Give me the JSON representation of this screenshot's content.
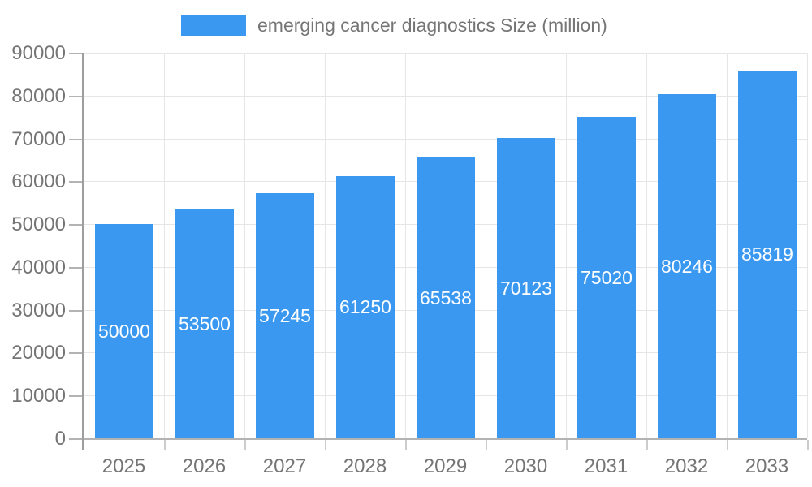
{
  "legend": {
    "label": "emerging cancer diagnostics Size (million)",
    "swatch_color": "#3a98f0"
  },
  "colors": {
    "bar": "#3a98f0",
    "value_label": "#ffffff",
    "axis_text": "#757575",
    "grid_line": "#e6e6e6",
    "y_axis_line": "#9e9e9e",
    "baseline": "#b3b3b3",
    "x_tick": "#cccccc",
    "background": "#ffffff"
  },
  "chart_data": {
    "type": "bar",
    "title": "",
    "xlabel": "",
    "ylabel": "",
    "categories": [
      "2025",
      "2026",
      "2027",
      "2028",
      "2029",
      "2030",
      "2031",
      "2032",
      "2033"
    ],
    "series": [
      {
        "name": "emerging cancer diagnostics Size (million)",
        "color": "#3a98f0",
        "values": [
          50000,
          53500,
          57245,
          61250,
          65538,
          70123,
          75020,
          80246,
          85819
        ]
      }
    ],
    "value_labels": [
      "50000",
      "53500",
      "57245",
      "61250",
      "65538",
      "70123",
      "75020",
      "80246",
      "85819"
    ],
    "value_label_position": "inside-center",
    "ylim": [
      0,
      90000
    ],
    "ytick_interval": 10000,
    "ytick_labels": [
      "0",
      "10000",
      "20000",
      "30000",
      "40000",
      "50000",
      "60000",
      "70000",
      "80000",
      "90000"
    ],
    "grid": "horizontal and vertical light gray",
    "legend_position": "top"
  }
}
